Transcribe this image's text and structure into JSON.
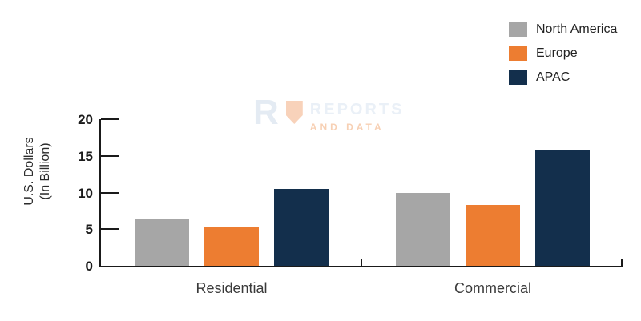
{
  "watermark": {
    "letter": "R",
    "line1": "REPORTS",
    "line2": "AND DATA"
  },
  "y_axis": {
    "title_line1": "U.S. Dollars",
    "title_line2": "(In Billion)"
  },
  "chart_data": {
    "type": "bar",
    "categories": [
      "Residential",
      "Commercial"
    ],
    "series": [
      {
        "name": "North America",
        "color": "#a6a6a6",
        "values": [
          6.5,
          10.0
        ]
      },
      {
        "name": "Europe",
        "color": "#ed7d31",
        "values": [
          5.4,
          8.3
        ]
      },
      {
        "name": "APAC",
        "color": "#132f4c",
        "values": [
          10.5,
          15.8
        ]
      }
    ],
    "title": "",
    "xlabel": "",
    "ylabel": "U.S. Dollars (In Billion)",
    "ylim": [
      0,
      20
    ],
    "yticks": [
      0,
      5,
      10,
      15,
      20
    ],
    "legend_position": "top-right",
    "grid": false
  }
}
